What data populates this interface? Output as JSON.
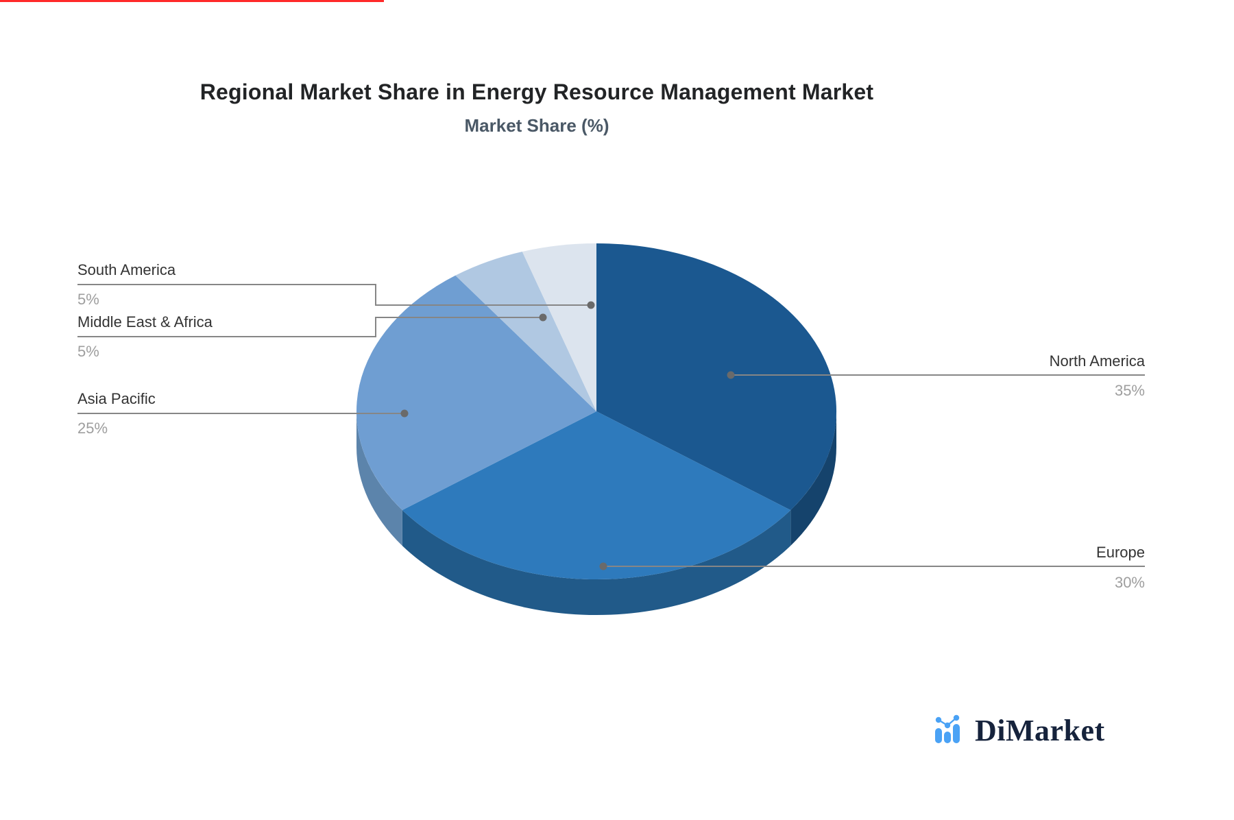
{
  "header": {
    "title": "Regional Market Share in Energy Resource Management Market",
    "subtitle": "Market Share (%)"
  },
  "decoration": {
    "top_strip_color": "#ff2a2a"
  },
  "chart_data": {
    "type": "pie",
    "style": "3d-pie",
    "title": "Regional Market Share in Energy Resource Management Market",
    "subtitle": "Market Share (%)",
    "unit": "%",
    "start_angle_deg": 0,
    "direction": "clockwise",
    "legend_position": "none",
    "label_color": "#333333",
    "value_color": "#9e9e9e",
    "connector_color": "#868686",
    "dot_color": "#6a6a6a",
    "slices": [
      {
        "name": "North America",
        "value": 35,
        "pct_label": "35%",
        "color": "#1b5890",
        "side_color": "#15436c",
        "label_side": "right"
      },
      {
        "name": "Europe",
        "value": 30,
        "pct_label": "30%",
        "color": "#2e7abc",
        "side_color": "#215a89",
        "label_side": "right"
      },
      {
        "name": "Asia Pacific",
        "value": 25,
        "pct_label": "25%",
        "color": "#6f9ed2",
        "side_color": "#5c84ab",
        "label_side": "left"
      },
      {
        "name": "Middle East & Africa",
        "value": 5,
        "pct_label": "5%",
        "color": "#b0c8e2",
        "side_color": "#93a9c2",
        "label_side": "left"
      },
      {
        "name": "South America",
        "value": 5,
        "pct_label": "5%",
        "color": "#dce4ee",
        "side_color": "#b8c4d3",
        "label_side": "left"
      }
    ]
  },
  "logo": {
    "text": "DiMarket",
    "icon": "bar-chart-logo-icon",
    "bar_color": "#4aa2f5",
    "text_color": "#16233c"
  }
}
